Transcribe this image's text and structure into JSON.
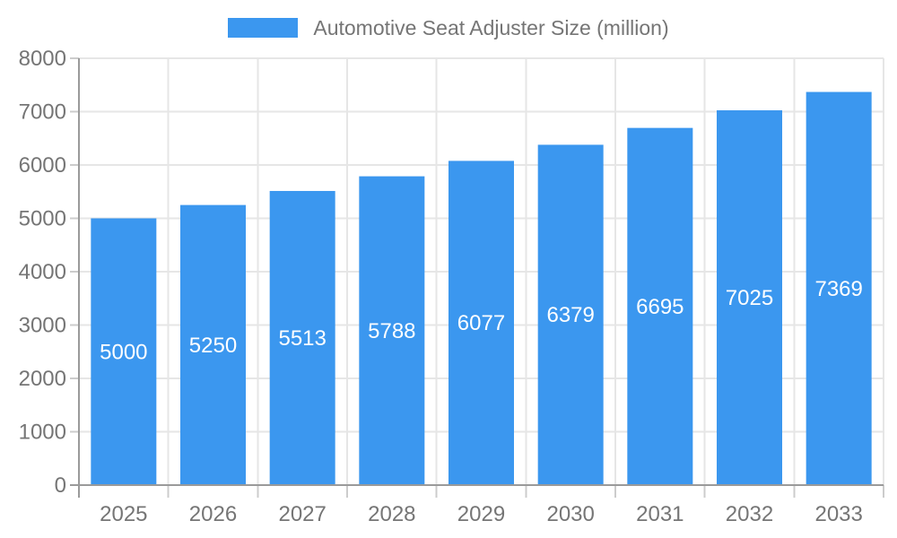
{
  "chart_data": {
    "type": "bar",
    "title": "Automotive Seat Adjuster Size (million)",
    "categories": [
      "2025",
      "2026",
      "2027",
      "2028",
      "2029",
      "2030",
      "2031",
      "2032",
      "2033"
    ],
    "values": [
      5000,
      5250,
      5513,
      5788,
      6077,
      6379,
      6695,
      7025,
      7369
    ],
    "xlabel": "",
    "ylabel": "",
    "ylim": [
      0,
      8000
    ],
    "ytick_step": 1000,
    "ytick_labels": [
      "0",
      "1000",
      "2000",
      "3000",
      "4000",
      "5000",
      "6000",
      "7000",
      "8000"
    ],
    "grid": true,
    "legend_position": "top",
    "value_labels_inside_bars": true
  },
  "colors": {
    "bar": "#3B97EF",
    "bar_value_text": "#ffffff",
    "axis_text": "#757575",
    "axis_line": "#9a9a9a",
    "gridline": "#e6e6e6",
    "tick": "#cccccc",
    "background": "#ffffff"
  }
}
